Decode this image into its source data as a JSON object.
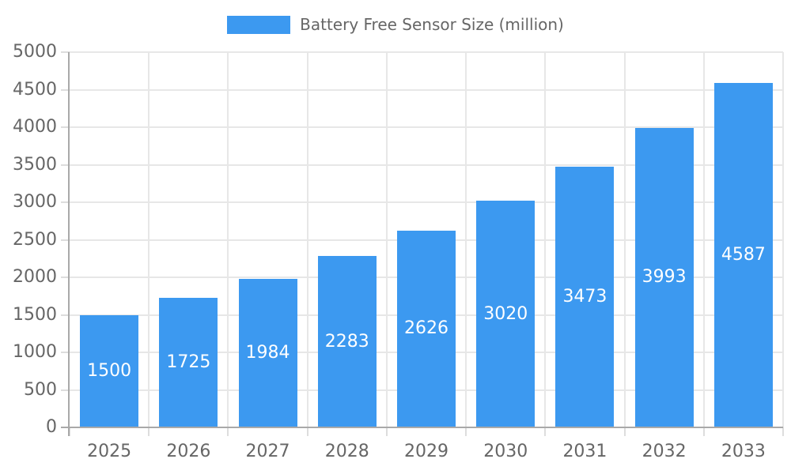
{
  "chart_data": {
    "type": "bar",
    "series_name": "Battery Free Sensor Size (million)",
    "categories": [
      "2025",
      "2026",
      "2027",
      "2028",
      "2029",
      "2030",
      "2031",
      "2032",
      "2033"
    ],
    "values": [
      1500,
      1725,
      1984,
      2283,
      2626,
      3020,
      3473,
      3993,
      4587
    ],
    "ylim": [
      0,
      5000
    ],
    "ytick_step": 500,
    "grid": true,
    "legend_position": "top",
    "bar_labels_inside": true,
    "colors": {
      "bar": "#3C99F0",
      "bar_label": "#ffffff",
      "axis": "#a9a9a9",
      "grid": "#e7e7e7",
      "tick": "#dddddd",
      "text": "#666666"
    }
  }
}
